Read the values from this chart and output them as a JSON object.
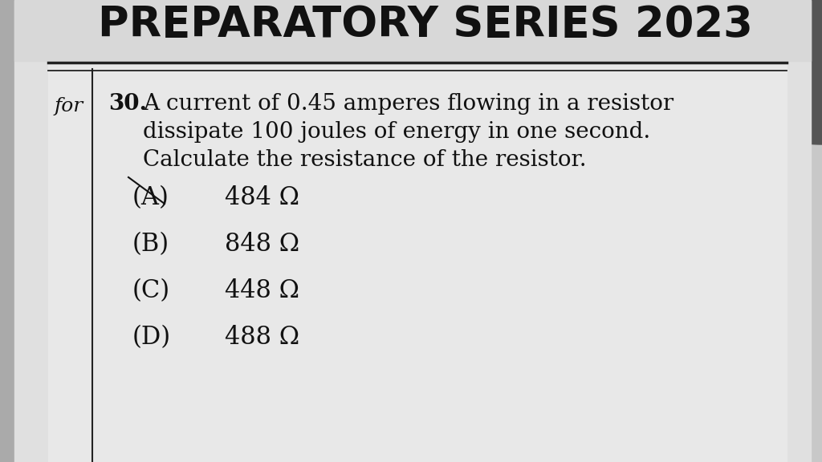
{
  "title": "PREPARATORY SERIES 2023",
  "question_number": "30.",
  "question_line1": "A current of 0.45 amperes flowing in a resistor",
  "question_line2": "dissipate 100 joules of energy in one second.",
  "question_line3": "Calculate the resistance of the resistor.",
  "options": [
    {
      "label": "(A)",
      "value": "484 Ω"
    },
    {
      "label": "(B)",
      "value": "848 Ω"
    },
    {
      "label": "(C)",
      "value": "448 Ω"
    },
    {
      "label": "(D)",
      "value": "488 Ω"
    }
  ],
  "for_text": "for",
  "bg_color": "#c8c8c8",
  "paper_color": "#d4d4d4",
  "text_color": "#111111",
  "line_color": "#222222",
  "title_fontsize": 38,
  "question_fontsize": 20,
  "option_label_fontsize": 22,
  "option_val_fontsize": 22,
  "for_fontsize": 18,
  "qnum_fontsize": 20
}
